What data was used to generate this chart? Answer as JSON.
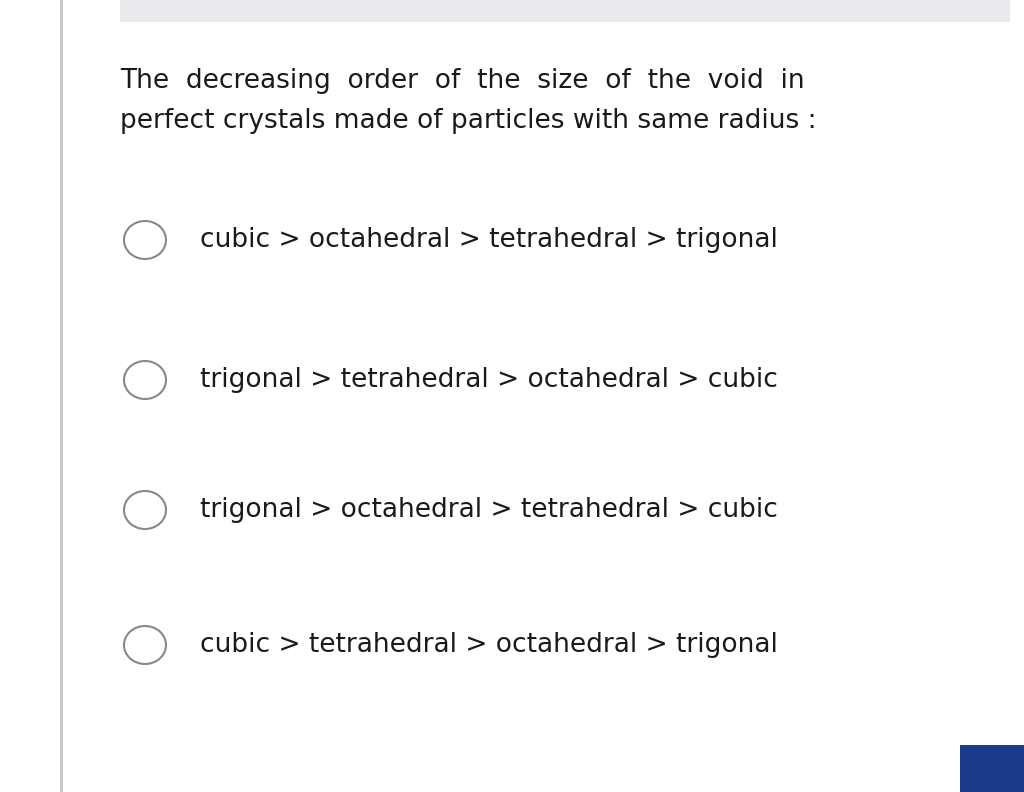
{
  "background_color": "#ffffff",
  "top_bar_color": "#e8eaed",
  "bottom_right_color": "#1a3a8c",
  "left_bar_color": "#c8c8c8",
  "question_line1": "The  decreasing  order  of  the  size  of  the  void  in",
  "question_line2": "perfect crystals made of particles with same radius :",
  "options": [
    "cubic > octahedral > tetrahedral > trigonal",
    "trigonal > tetrahedral > octahedral > cubic",
    "trigonal > octahedral > tetrahedral > cubic",
    "cubic > tetrahedral > octahedral > trigonal"
  ],
  "text_color": "#1a1a1a",
  "circle_edge_color": "#888888",
  "circle_face_color": "#ffffff",
  "question_fontsize": 19,
  "option_fontsize": 19,
  "fig_width": 10.24,
  "fig_height": 7.92,
  "dpi": 100
}
